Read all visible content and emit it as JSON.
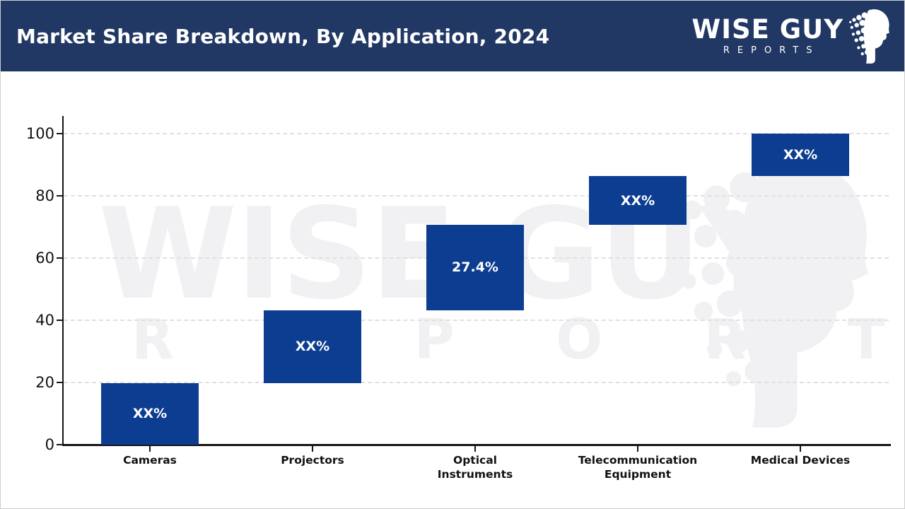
{
  "header": {
    "title": "Market Share Breakdown, By Application, 2024",
    "logo": {
      "line1": "WISE GUY",
      "line2": "REPORTS"
    }
  },
  "watermark": {
    "line1": "WISE GUY",
    "line2": "R E P O R T S"
  },
  "colors": {
    "header_bg": "#213864",
    "bar": "#0d3d91",
    "grid": "#e0e0e0",
    "axis": "#151515",
    "bar_label": "#ffffff",
    "watermark": "#f1f1f4"
  },
  "chart_data": {
    "type": "bar",
    "subtype": "waterfall",
    "title": "Market Share Breakdown, By Application, 2024",
    "xlabel": "",
    "ylabel": "",
    "ylim": [
      0,
      100
    ],
    "yticks": [
      0,
      20,
      40,
      60,
      80,
      100
    ],
    "grid": "horizontal-dashed",
    "legend": "none",
    "bar_color": "#0d3d91",
    "categories": [
      "Cameras",
      "Projectors",
      "Optical Instruments",
      "Telecommunication Equipment",
      "Medical Devices"
    ],
    "category_label_lines": [
      [
        "Cameras"
      ],
      [
        "Projectors"
      ],
      [
        "Optical",
        "Instruments"
      ],
      [
        "Telecommunication",
        "Equipment"
      ],
      [
        "Medical Devices"
      ]
    ],
    "segments": [
      {
        "category": "Cameras",
        "start": 0,
        "end": 19.8,
        "value": 19.8,
        "label": "XX%"
      },
      {
        "category": "Projectors",
        "start": 19.8,
        "end": 43.2,
        "value": 23.4,
        "label": "XX%"
      },
      {
        "category": "Optical Instruments",
        "start": 43.2,
        "end": 70.6,
        "value": 27.4,
        "label": "27.4%"
      },
      {
        "category": "Telecommunication Equipment",
        "start": 70.6,
        "end": 86.2,
        "value": 15.6,
        "label": "XX%"
      },
      {
        "category": "Medical Devices",
        "start": 86.2,
        "end": 100,
        "value": 13.8,
        "label": "XX%"
      }
    ]
  }
}
